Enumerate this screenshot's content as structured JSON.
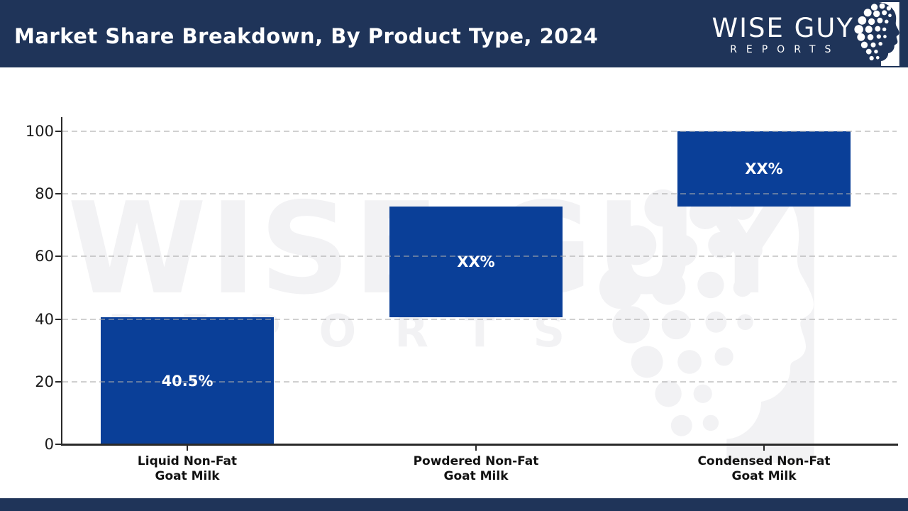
{
  "header": {
    "title": "Market Share Breakdown, By Product Type, 2024",
    "logo": {
      "line1": "WISE GUY",
      "line2": "REPORTS"
    }
  },
  "watermark": {
    "line1": "WISE GUY",
    "line2": "REPORTS"
  },
  "colors": {
    "header_bg": "#1f3459",
    "bar": "#0a3f98",
    "grid": "#d4d4d4",
    "bar_label_text": "#ffffff",
    "axis_text": "#1a1a1a"
  },
  "chart_data": {
    "type": "bar",
    "subtype": "waterfall",
    "title": "Market Share Breakdown, By Product Type, 2024",
    "categories": [
      {
        "line1": "Liquid Non-Fat",
        "line2": "Goat Milk"
      },
      {
        "line1": "Powdered Non-Fat",
        "line2": "Goat Milk"
      },
      {
        "line1": "Condensed Non-Fat",
        "line2": "Goat Milk"
      }
    ],
    "bars": [
      {
        "value_label": "40.5%",
        "start": 0,
        "end": 40.5
      },
      {
        "value_label": "XX%",
        "start": 40.5,
        "end": 76
      },
      {
        "value_label": "XX%",
        "start": 76,
        "end": 100
      }
    ],
    "yticks": [
      0,
      20,
      40,
      60,
      80,
      100
    ],
    "ylim": [
      0,
      104
    ],
    "xlabel": "",
    "ylabel": "",
    "grid": "horizontal dashed",
    "legend": "none"
  }
}
